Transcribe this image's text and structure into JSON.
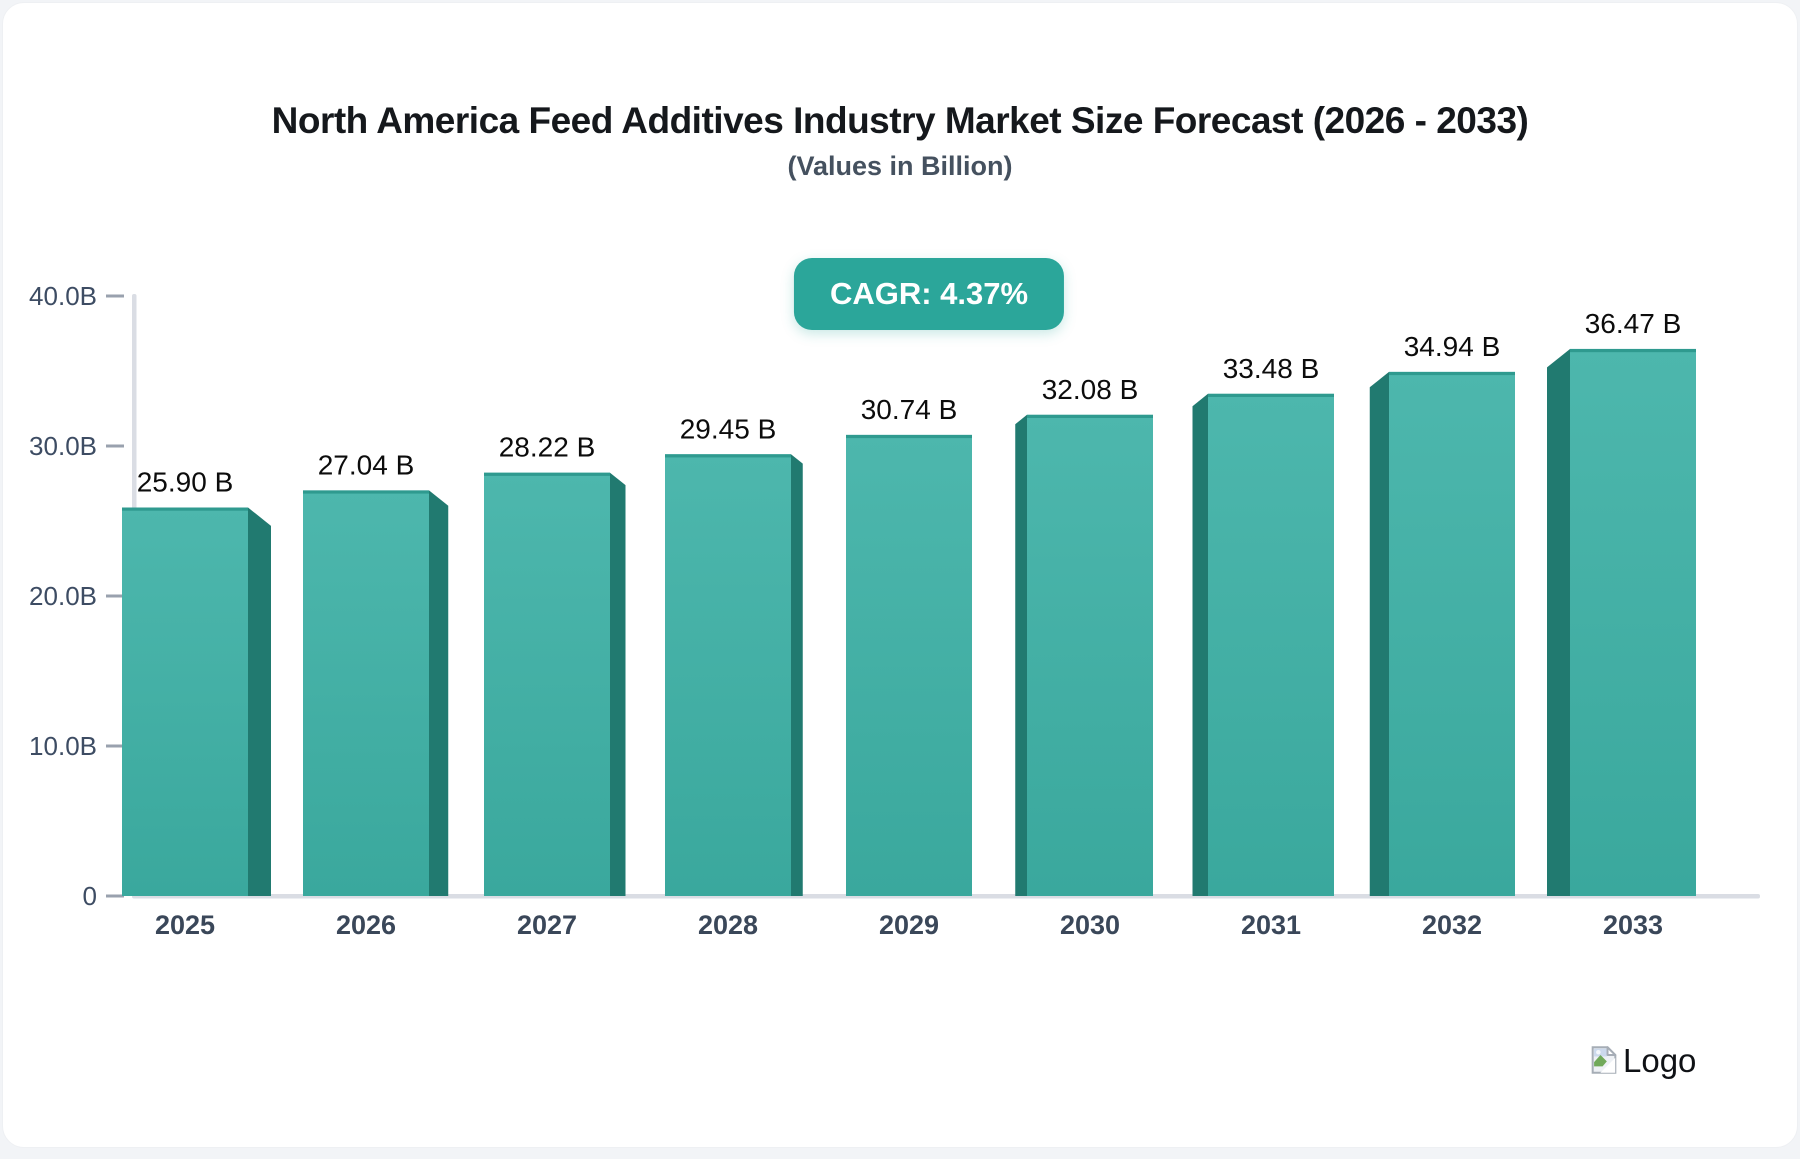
{
  "header": {
    "title": "North America Feed Additives Industry Market Size Forecast (2026 - 2033)",
    "subtitle": "(Values in Billion)"
  },
  "badge": {
    "label": "CAGR: 4.37%",
    "bg": "#2ba69a",
    "text_color": "#ffffff"
  },
  "footer": {
    "logo_alt": "Logo"
  },
  "chart_data": {
    "type": "bar",
    "title": "North America Feed Additives Industry Market Size Forecast (2026 - 2033)",
    "subtitle": "(Values in Billion)",
    "xlabel": "",
    "ylabel": "",
    "ylim": [
      0,
      40
    ],
    "grid": false,
    "legend": "none",
    "bar_style": "3d-perspective-to-center",
    "categories": [
      "2025",
      "2026",
      "2027",
      "2028",
      "2029",
      "2030",
      "2031",
      "2032",
      "2033"
    ],
    "values": [
      25.9,
      27.04,
      28.22,
      29.45,
      30.74,
      32.08,
      33.48,
      34.94,
      36.47
    ],
    "value_labels": [
      "25.90 B",
      "27.04 B",
      "28.22 B",
      "29.45 B",
      "30.74 B",
      "32.08 B",
      "33.48 B",
      "34.94 B",
      "36.47 B"
    ],
    "yticks": [
      {
        "value": 40,
        "label": "40.0B"
      },
      {
        "value": 30,
        "label": "30.0B"
      },
      {
        "value": 20,
        "label": "20.0B"
      },
      {
        "value": 10,
        "label": "10.0B"
      },
      {
        "value": 0,
        "label": "0"
      }
    ],
    "colors": {
      "bar_front_top": "#4db7ad",
      "bar_front_bottom": "#3aa89d",
      "bar_top_edge": "#2f9a8f",
      "bar_side": "#217a70",
      "axis_line": "#dadde4",
      "tick_dash": "#99a1ae",
      "ytick_text": "#3d4c63",
      "xtick_text": "#3a4759",
      "value_text": "#0c0c0c"
    }
  }
}
